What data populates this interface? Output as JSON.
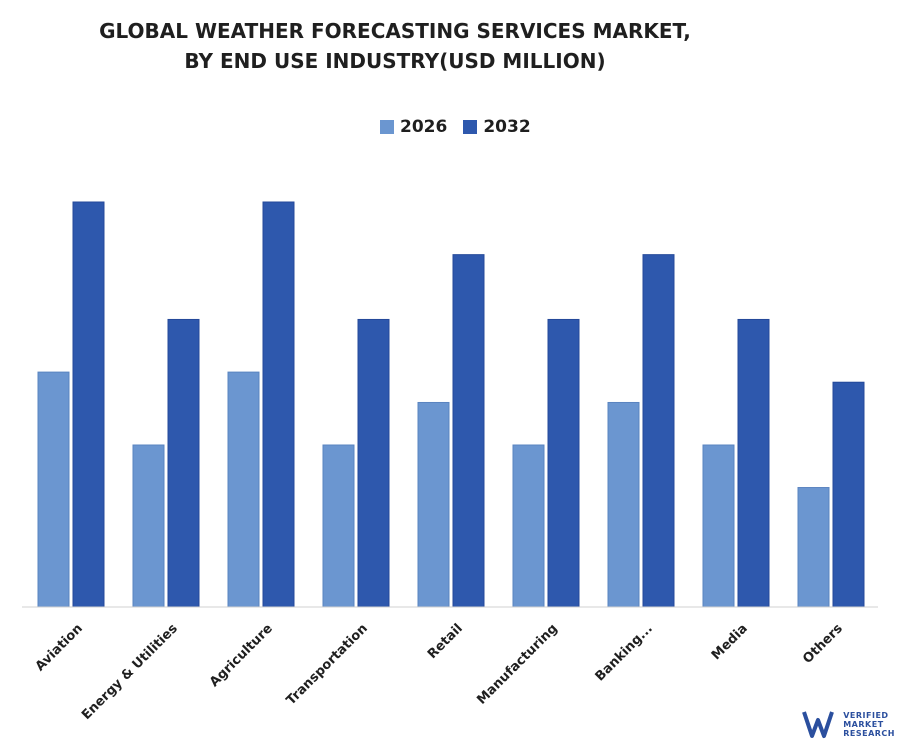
{
  "chart_data": {
    "type": "bar",
    "title": [
      "GLOBAL WEATHER FORECASTING SERVICES MARKET,",
      "BY END USE INDUSTRY(USD MILLION)"
    ],
    "categories": [
      "Aviation",
      "Energy & Utilities",
      "Agriculture",
      "Transportation",
      "Retail",
      "Manufacturing",
      "Banking...",
      "Media",
      "Others"
    ],
    "series": [
      {
        "name": "2026",
        "color": "#6b96d0",
        "values": [
          58,
          40,
          58,
          40,
          50.5,
          40,
          50.5,
          40,
          29.5
        ]
      },
      {
        "name": "2032",
        "color": "#2e58ad",
        "values": [
          100,
          71,
          100,
          71,
          87,
          71,
          87,
          71,
          55.5
        ]
      }
    ],
    "ylim": [
      0,
      100
    ],
    "grid": false,
    "legend_position": "top-center"
  },
  "watermark": {
    "lines": [
      "VERIFIED",
      "MARKET",
      "RESEARCH"
    ],
    "icon": "vmr-logo-icon",
    "color": "#2b4f9e"
  }
}
